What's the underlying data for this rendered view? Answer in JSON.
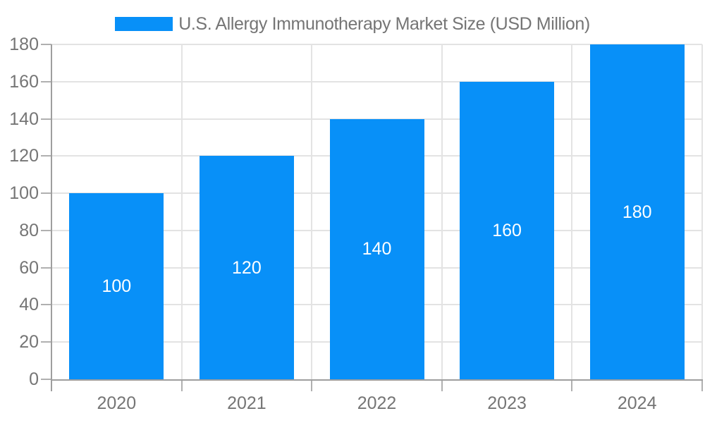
{
  "chart_data": {
    "type": "bar",
    "title": "U.S. Allergy Immunotherapy Market Size (USD Million)",
    "legend_position": "top",
    "categories": [
      "2020",
      "2021",
      "2022",
      "2023",
      "2024"
    ],
    "series": [
      {
        "name": "U.S. Allergy Immunotherapy Market Size (USD Million)",
        "values": [
          100,
          120,
          140,
          160,
          180
        ]
      }
    ],
    "value_labels": [
      "100",
      "120",
      "140",
      "160",
      "180"
    ],
    "xlabel": "",
    "ylabel": "",
    "ylim": [
      0,
      180
    ],
    "ytick_step": 20,
    "yticks": [
      "0",
      "20",
      "40",
      "60",
      "80",
      "100",
      "120",
      "140",
      "160",
      "180"
    ],
    "grid": "horizontal and vertical category-boundary gridlines",
    "colors": {
      "bar": "#0890f8",
      "value_label": "#ffffff",
      "text": "#757575",
      "gridline": "#e3e3e3",
      "axis_line": "#9e9e9e",
      "tick": "#b0b0b0",
      "background": "#ffffff"
    }
  }
}
